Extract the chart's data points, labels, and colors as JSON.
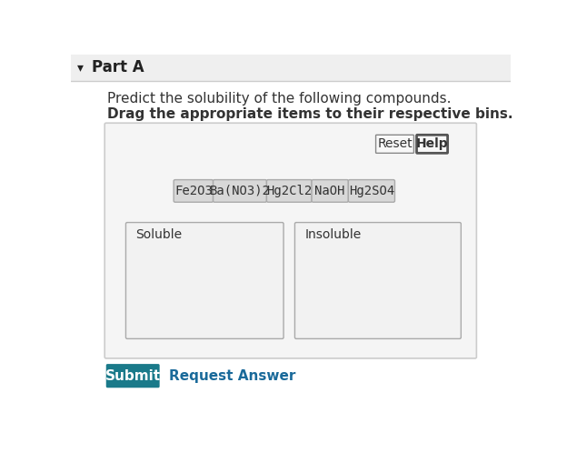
{
  "title_arrow": "▾",
  "part_label": "Part A",
  "instruction1": "Predict the solubility of the following compounds.",
  "instruction2": "Drag the appropriate items to their respective bins.",
  "compounds_display": [
    "Fe2O3",
    "Ba(NO3)2",
    "Hg2Cl2",
    "NaOH",
    "Hg2SO4"
  ],
  "bin_labels": [
    "Soluble",
    "Insoluble"
  ],
  "button_reset": "Reset",
  "button_help": "Help",
  "button_submit": "Submit",
  "button_request": "Request Answer",
  "bg_top": "#efefef",
  "bg_main": "#ffffff",
  "bg_box": "#f5f5f5",
  "compound_bg": "#d8d8d8",
  "compound_border": "#aaaaaa",
  "submit_bg": "#1a7a8a",
  "submit_text": "#ffffff",
  "request_color": "#1a6a9a",
  "border_color": "#cccccc",
  "text_color": "#333333",
  "part_color": "#222222",
  "tag_widths": [
    52,
    72,
    60,
    48,
    62
  ]
}
